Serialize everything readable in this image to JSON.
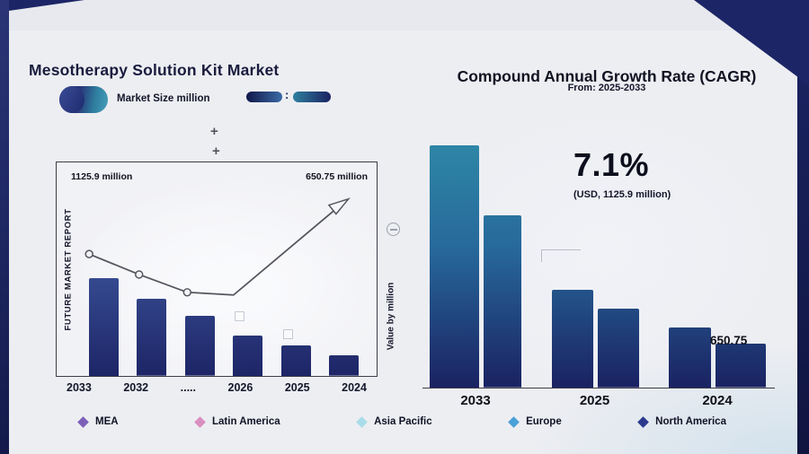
{
  "left_panel": {
    "title": "Mesotherapy Solution Kit Market",
    "legend_label": "Market Size million",
    "legend_separator": ":",
    "plus_glyph": "+",
    "watermark": "FUTURE MARKET REPORT",
    "annotation_left": "1125.9 million",
    "annotation_right": "650.75 million"
  },
  "right_panel": {
    "title": "Compound Annual Growth Rate (CAGR)",
    "subtitle": "From: 2025-2033",
    "cagr_value": "7.1%",
    "cagr_note": "(USD, 1125.9 million)",
    "ylabel": "Value by million",
    "bar_value_label": "650.75"
  },
  "footer_legend": {
    "items": [
      {
        "label": "MEA",
        "color": "#7b60b8"
      },
      {
        "label": "Latin America",
        "color": "#d98fc0"
      },
      {
        "label": "Asia Pacific",
        "color": "#a9dce8"
      },
      {
        "label": "Europe",
        "color": "#4aa0d8"
      },
      {
        "label": "North America",
        "color": "#2b3a8e"
      }
    ]
  },
  "colors": {
    "navy": "#1c2566",
    "teal": "#2e86a6",
    "background": "#edeef2"
  },
  "chart_data": [
    {
      "type": "bar",
      "title": "Mesotherapy Solution Kit Market - Market Size (million USD)",
      "ylabel": "Market Size million",
      "categories": [
        "2033",
        "2032",
        ".....",
        "2026",
        "2025",
        "2024"
      ],
      "values": [
        1125.9,
        1051.3,
        981.6,
        746.4,
        696.9,
        650.75
      ],
      "estimated": "2033 and 2024 are labeled on chart (1125.9 / 650.75 million); intermediate years estimated from 7.1% CAGR",
      "heights_pct": [
        46,
        36,
        28,
        19,
        14.5,
        9.5
      ],
      "annotations": [
        "1125.9 million",
        "650.75 million"
      ],
      "trendline": "markers declining left-to-right, arrow rising to upper right",
      "legend_position": "top-left",
      "grid": false
    },
    {
      "type": "bar",
      "title": "Compound Annual Growth Rate (CAGR)",
      "subtitle": "From: 2025-2033",
      "ylabel": "Value by million",
      "categories": [
        "2033",
        "2025",
        "2024"
      ],
      "values": [
        1125.9,
        696.9,
        650.75
      ],
      "bars_per_group": 2,
      "heights_pct": [
        [
          100,
          71
        ],
        [
          40.5,
          32.5
        ],
        [
          25,
          18
        ]
      ],
      "data_labels": [
        "",
        "",
        "650.75"
      ],
      "cagr": "7.1%",
      "cagr_period": "2025-2033",
      "grid": false
    }
  ]
}
